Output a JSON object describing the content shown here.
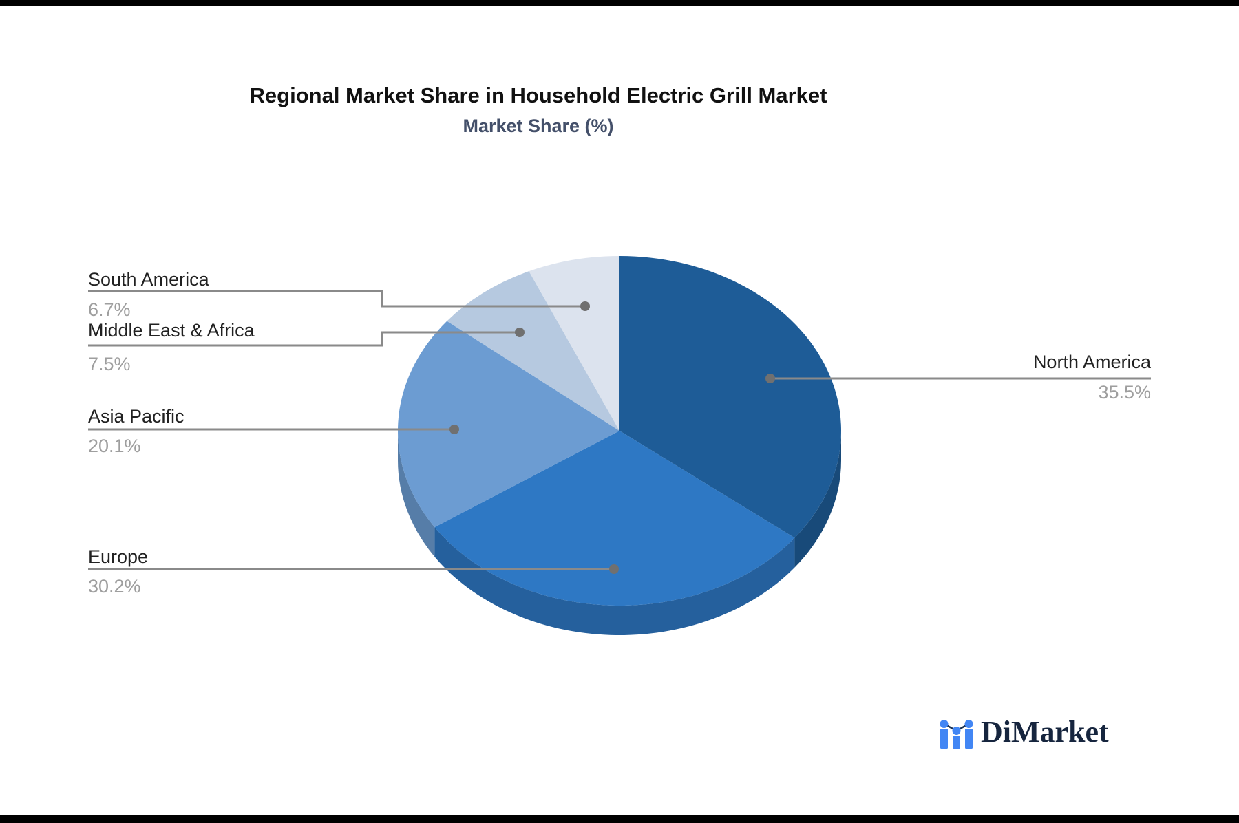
{
  "title": "Regional Market Share in Household Electric Grill Market",
  "subtitle": "Market Share (%)",
  "brand": {
    "name": "DiMarket",
    "accent_color": "#4286F4",
    "text_color": "#16253E"
  },
  "chart_data": {
    "type": "pie",
    "title": "Regional Market Share in Household Electric Grill Market",
    "subtitle": "Market Share (%)",
    "unit": "%",
    "effect": "3d",
    "start_angle": "12-o'clock",
    "direction": "clockwise",
    "legend_position": "none (direct leader-line labels)",
    "slices": [
      {
        "label": "North America",
        "value": 35.5,
        "pct_text": "35.5%",
        "color": "#1E5C97"
      },
      {
        "label": "Europe",
        "value": 30.2,
        "pct_text": "30.2%",
        "color": "#2E78C4"
      },
      {
        "label": "Asia Pacific",
        "value": 20.1,
        "pct_text": "20.1%",
        "color": "#6C9CD2"
      },
      {
        "label": "Middle East & Africa",
        "value": 7.5,
        "pct_text": "7.5%",
        "color": "#B6C9E0"
      },
      {
        "label": "South America",
        "value": 6.7,
        "pct_text": "6.7%",
        "color": "#DCE3EE"
      }
    ],
    "label_text_color": "#212121",
    "value_text_color": "#9E9E9E",
    "leader_line_color": "#8A8A8A",
    "leader_dot_color": "#707070"
  }
}
